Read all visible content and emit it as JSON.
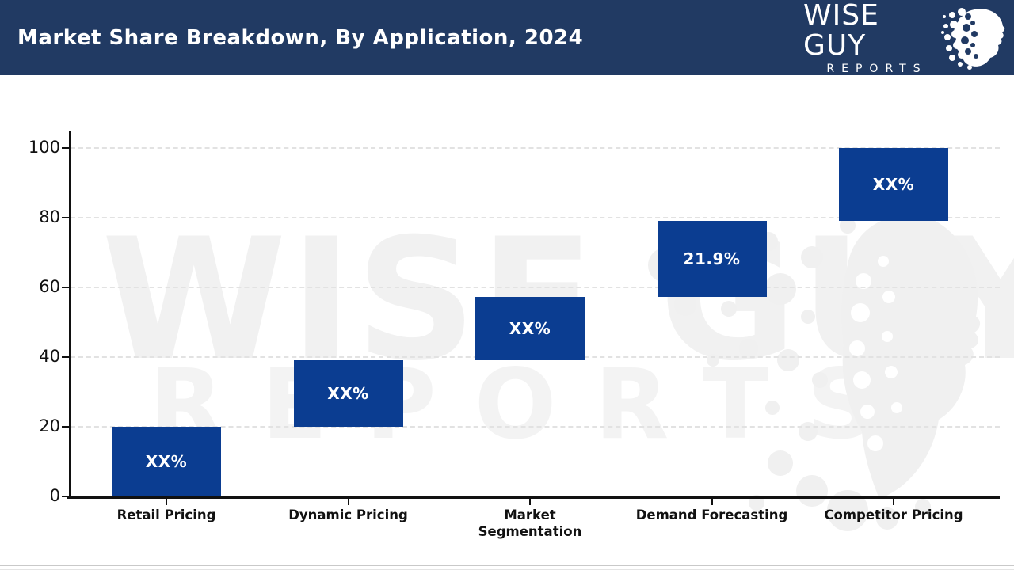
{
  "header": {
    "title": "Market Share Breakdown, By Application, 2024",
    "logo": {
      "line1": "WISE GUY",
      "line2": "REPORTS"
    }
  },
  "watermark": {
    "line1": "WISE GUY",
    "line2": "REPORTS"
  },
  "colors": {
    "header_bg": "#213a63",
    "bar": "#0b3d91",
    "grid": "#e2e2e2",
    "axis": "#111111",
    "bar_label_text": "#ffffff",
    "watermark_text": "#f1f1f1"
  },
  "chart_data": {
    "type": "bar",
    "subtype": "waterfall-floating-bars",
    "title": "Market Share Breakdown, By Application, 2024",
    "xlabel": "",
    "ylabel": "",
    "categories": [
      "Retail Pricing",
      "Dynamic Pricing",
      "Market\nSegmentation",
      "Demand Forecasting",
      "Competitor Pricing"
    ],
    "segments": [
      {
        "start": 0,
        "end": 20
      },
      {
        "start": 20,
        "end": 39.1
      },
      {
        "start": 39.1,
        "end": 57.2
      },
      {
        "start": 57.2,
        "end": 79.1
      },
      {
        "start": 79.1,
        "end": 100
      }
    ],
    "values": [
      20,
      19.1,
      18.1,
      21.9,
      20.9
    ],
    "bar_labels": [
      "XX%",
      "XX%",
      "XX%",
      "21.9%",
      "XX%"
    ],
    "y_ticks": [
      0,
      20,
      40,
      60,
      80,
      100
    ],
    "ylim": [
      0,
      105
    ],
    "grid": "horizontal-dashed",
    "legend": "none"
  }
}
